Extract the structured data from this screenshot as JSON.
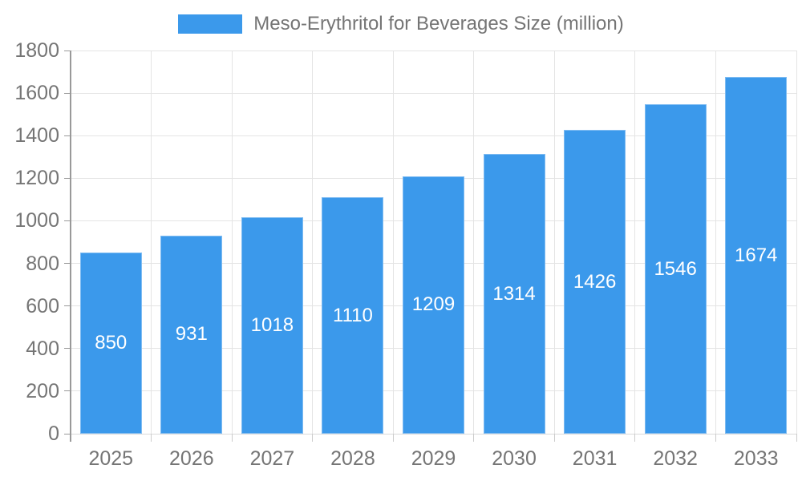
{
  "legend": {
    "items": [
      {
        "label": "Meso-Erythritol for Beverages Size (million)",
        "swatch_color": "#3B99EB"
      }
    ]
  },
  "chart_data": {
    "type": "bar",
    "title": "Meso-Erythritol for Beverages Size (million)",
    "categories": [
      "2025",
      "2026",
      "2027",
      "2028",
      "2029",
      "2030",
      "2031",
      "2032",
      "2033"
    ],
    "series": [
      {
        "name": "Meso-Erythritol for Beverages Size (million)",
        "values": [
          850,
          931,
          1018,
          1110,
          1209,
          1314,
          1426,
          1546,
          1674
        ],
        "color": "#3B99EB"
      }
    ],
    "xlabel": "",
    "ylabel": "",
    "ylim": [
      0,
      1800
    ],
    "yticks": [
      0,
      200,
      400,
      600,
      800,
      1000,
      1200,
      1400,
      1600,
      1800
    ],
    "grid": true,
    "legend_position": "top",
    "bar_labels": "inside-center"
  },
  "colors": {
    "bar": "#3B99EB",
    "bar_label": "#FFFFFF",
    "axis_label": "#757575",
    "grid_line": "#E4E4E4",
    "zero_line": "#D9D9D9",
    "axis_line": "#999999",
    "x_tick": "#CCCCCC",
    "background": "#FFFFFF"
  }
}
